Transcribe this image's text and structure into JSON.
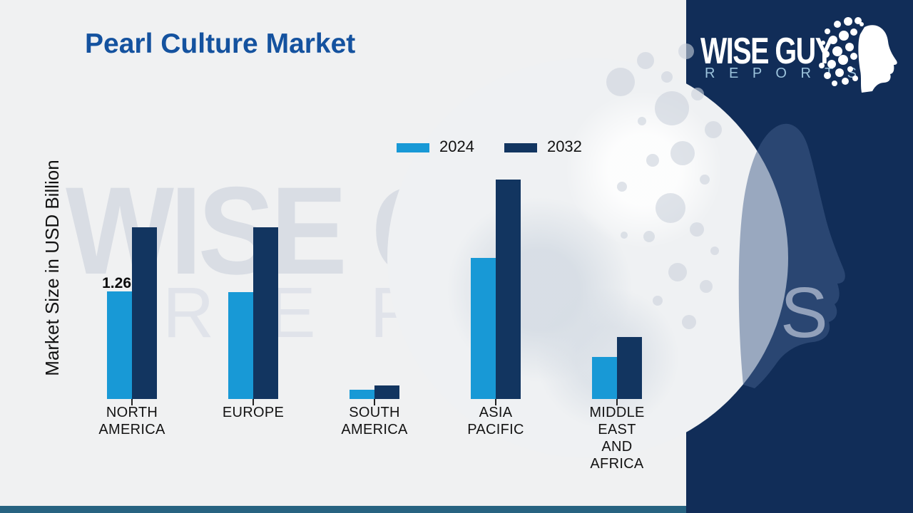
{
  "title": {
    "text": "Pearl Culture Market",
    "color": "#14529f"
  },
  "y_axis_label": "Market Size in USD Billion",
  "watermark": {
    "line1": "WISE GUY",
    "line2": "R E P O R T S"
  },
  "logo": {
    "name_line": "WISE GUY",
    "sub_line": "R E P O R T S"
  },
  "colors": {
    "background": "#f0f1f2",
    "panel_navy": "#112d58",
    "bottom_bar_teal": "#276381",
    "bar_2024_blue": "#1899d6",
    "bar_2032_navy": "#123560",
    "watermark_gray": "#d9dde4",
    "logo_subtitle_blue": "#9cc3dc"
  },
  "chart_data": {
    "type": "bar",
    "title": "Pearl Culture Market",
    "ylabel": "Market Size in USD Billion",
    "unit": "USD Billion",
    "categories": [
      "NORTH AMERICA",
      "EUROPE",
      "SOUTH AMERICA",
      "ASIA PACIFIC",
      "MIDDLE EAST AND AFRICA"
    ],
    "label_lines": [
      [
        "NORTH",
        "AMERICA"
      ],
      [
        "EUROPE"
      ],
      [
        "SOUTH",
        "AMERICA"
      ],
      [
        "ASIA",
        "PACIFIC"
      ],
      [
        "MIDDLE",
        "EAST",
        "AND",
        "AFRICA"
      ]
    ],
    "series": [
      {
        "name": "2024",
        "color": "#1899d6",
        "values": [
          1.26,
          1.25,
          0.11,
          1.65,
          0.49
        ]
      },
      {
        "name": "2032",
        "color": "#123560",
        "values": [
          2.01,
          2.01,
          0.16,
          2.57,
          0.73
        ]
      }
    ],
    "value_labels": [
      {
        "series_index": 0,
        "category_index": 0,
        "text": "1.26"
      }
    ],
    "ylim": [
      0,
      3
    ],
    "grid": false,
    "legend_position": "top-center"
  }
}
